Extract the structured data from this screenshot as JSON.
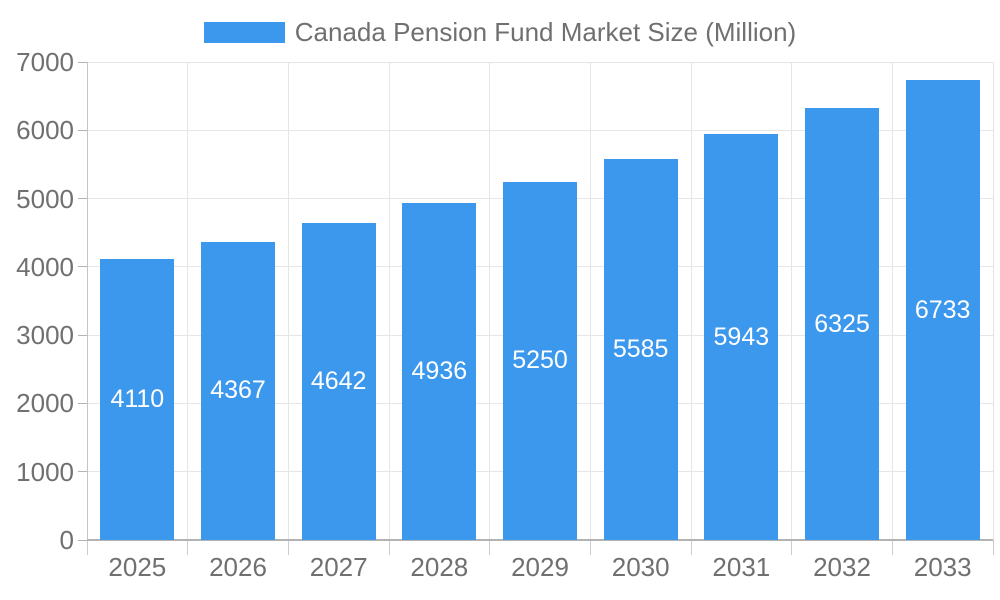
{
  "chart_data": {
    "type": "bar",
    "title": "Canada Pension Fund Market Size (Million)",
    "categories": [
      "2025",
      "2026",
      "2027",
      "2028",
      "2029",
      "2030",
      "2031",
      "2032",
      "2033"
    ],
    "values": [
      4110,
      4367,
      4642,
      4936,
      5250,
      5585,
      5943,
      6325,
      6733
    ],
    "value_labels_shown": true,
    "value_label_position": "centered inside bar",
    "xlabel": "",
    "ylabel": "",
    "ylim": [
      0,
      7000
    ],
    "yticks": [
      0,
      1000,
      2000,
      3000,
      4000,
      5000,
      6000,
      7000
    ],
    "grid": "horizontal and vertical light gray gridlines",
    "legend_position": "top-center",
    "colors": {
      "bar": "#3b98ec",
      "tick_text": "#707070",
      "legend_text": "#707070",
      "value_label_text": "#ffffff",
      "gridline": "#e6e6e6",
      "axis_line": "#b3b3b3",
      "background": "#ffffff"
    }
  }
}
